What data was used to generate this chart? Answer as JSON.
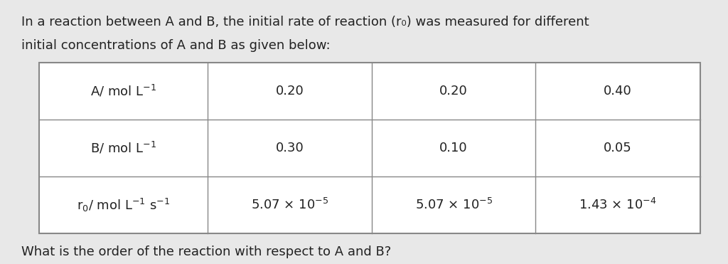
{
  "title_line1": "In a reaction between A and B, the initial rate of reaction (r₀) was measured for different",
  "title_line2": "initial concentrations of A and B as given below:",
  "footer": "What is the order of the reaction with respect to A and B?",
  "bg_color": "#e8e8e8",
  "table_bg": "#ffffff",
  "text_color": "#222222",
  "font_size_text": 13.0,
  "font_size_table": 13.0,
  "table_line_color": "#888888",
  "table_outer_lw": 1.5,
  "table_inner_lw": 1.0
}
